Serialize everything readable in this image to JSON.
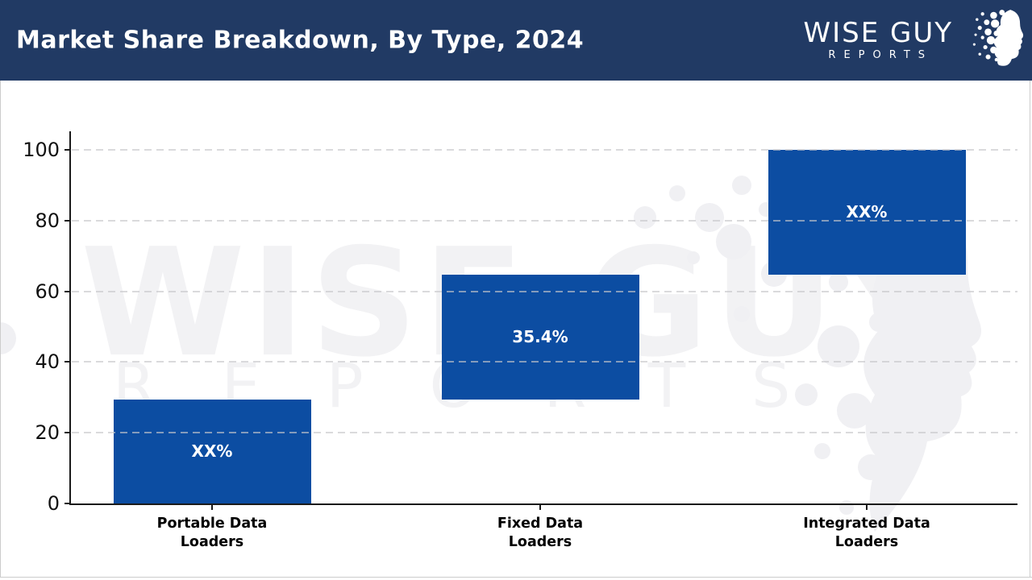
{
  "header": {
    "title": "Market Share Breakdown, By Type, 2024",
    "bg_color": "#213a64",
    "logo": {
      "line1": "WISE GUY",
      "line2": "REPORTS"
    }
  },
  "watermark": {
    "line1": "WISE GUY",
    "line2": "REPORTS"
  },
  "chart_data": {
    "type": "bar",
    "subtype": "waterfall-floating-segments",
    "title": "Market Share Breakdown, By Type, 2024",
    "categories": [
      "Portable Data Loaders",
      "Fixed Data Loaders",
      "Integrated Data Loaders"
    ],
    "segments": [
      {
        "category": "Portable Data Loaders",
        "start": 0,
        "end": 29.4,
        "label": "XX%"
      },
      {
        "category": "Fixed Data Loaders",
        "start": 29.4,
        "end": 64.8,
        "label": "35.4%"
      },
      {
        "category": "Integrated Data Loaders",
        "start": 64.8,
        "end": 100,
        "label": "XX%"
      }
    ],
    "xlabel": "",
    "ylabel": "",
    "ylim": [
      0,
      100
    ],
    "yticks": [
      0,
      20,
      40,
      60,
      80,
      100
    ],
    "grid": "horizontal-dashed",
    "legend": "none",
    "bar_color": "#0c4da2",
    "bar_label_color": "#ffffff",
    "axis_color": "#1a1a1a"
  }
}
